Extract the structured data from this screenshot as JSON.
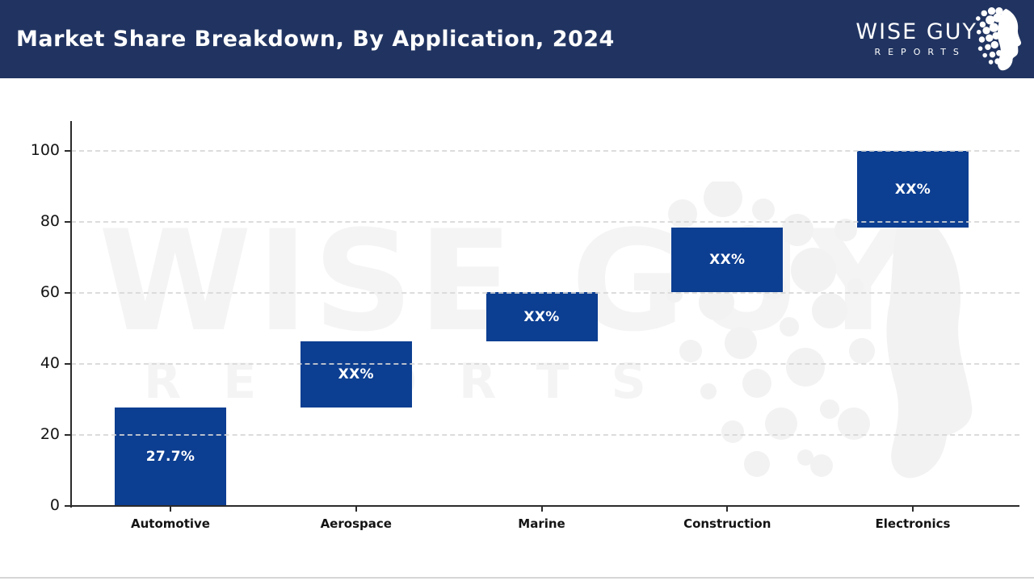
{
  "header": {
    "title": "Market Share Breakdown, By Application, 2024",
    "bg_color": "#213461",
    "logo": {
      "line1": "WISE GUY",
      "line2": "REPORTS",
      "head_icon": "dotted-face-profile"
    }
  },
  "watermark": {
    "line1": "WISE GUY",
    "line2": "REPORTS",
    "color": "#f4f4f4"
  },
  "chart_data": {
    "type": "bar",
    "variant": "waterfall-floating-bars",
    "title": "Market Share Breakdown, By Application, 2024",
    "categories": [
      "Automotive",
      "Aerospace",
      "Marine",
      "Construction",
      "Electronics"
    ],
    "segments": [
      {
        "category": "Automotive",
        "start": 0,
        "end": 27.7,
        "label": "27.7%"
      },
      {
        "category": "Aerospace",
        "start": 27.7,
        "end": 46.3,
        "label": "XX%"
      },
      {
        "category": "Marine",
        "start": 46.3,
        "end": 60.2,
        "label": "XX%"
      },
      {
        "category": "Construction",
        "start": 60.2,
        "end": 78.3,
        "label": "XX%"
      },
      {
        "category": "Electronics",
        "start": 78.3,
        "end": 100,
        "label": "XX%"
      }
    ],
    "xlabel": "",
    "ylabel": "",
    "y_ticks": [
      0,
      20,
      40,
      60,
      80,
      100
    ],
    "ylim": [
      0,
      108
    ],
    "grid": true,
    "grid_style": "dashed",
    "grid_above_bars": true,
    "legend": "none",
    "bar_color": "#0c3e91",
    "bar_label_color": "#ffffff",
    "axis_color": "#2b2b2b",
    "grid_color": "#d9d9d9"
  }
}
